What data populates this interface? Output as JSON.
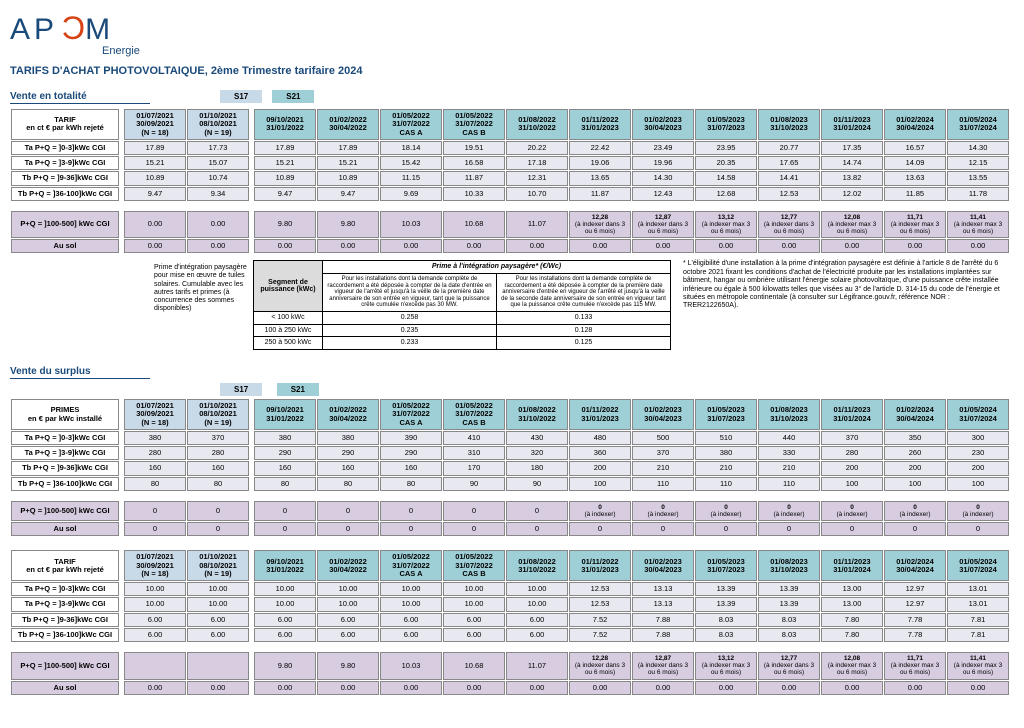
{
  "logo": {
    "part1": "AP",
    "part2": "C",
    "part3": "M",
    "sub": "Energie"
  },
  "title": "TARIFS D'ACHAT PHOTOVOLTAIQUE, 2ème Trimestre tarifaire 2024",
  "pills": {
    "s17": "S17",
    "s21": "S21"
  },
  "sections": {
    "vente_totalite": "Vente en totalité",
    "vente_surplus": "Vente du surplus"
  },
  "tarif_label": {
    "l1": "TARIF",
    "l2": "en ct € par kWh rejeté"
  },
  "primes_label": {
    "l1": "PRIMES",
    "l2": "en € par kWc installé"
  },
  "headers": [
    {
      "l1": "01/07/2021",
      "l2": "30/09/2021",
      "l3": "(N = 18)",
      "cls": "hdr1"
    },
    {
      "l1": "01/10/2021",
      "l2": "08/10/2021",
      "l3": "(N = 19)",
      "cls": "hdr1"
    },
    {
      "l1": "09/10/2021",
      "l2": "31/01/2022",
      "l3": "",
      "cls": "hdr2"
    },
    {
      "l1": "01/02/2022",
      "l2": "30/04/2022",
      "l3": "",
      "cls": "hdr2"
    },
    {
      "l1": "01/05/2022",
      "l2": "31/07/2022",
      "l3": "CAS A",
      "cls": "hdr2"
    },
    {
      "l1": "01/05/2022",
      "l2": "31/07/2022",
      "l3": "CAS B",
      "cls": "hdr2"
    },
    {
      "l1": "01/08/2022",
      "l2": "31/10/2022",
      "l3": "",
      "cls": "hdr2"
    },
    {
      "l1": "01/11/2022",
      "l2": "31/01/2023",
      "l3": "",
      "cls": "hdr2"
    },
    {
      "l1": "01/02/2023",
      "l2": "30/04/2023",
      "l3": "",
      "cls": "hdr2"
    },
    {
      "l1": "01/05/2023",
      "l2": "31/07/2023",
      "l3": "",
      "cls": "hdr2"
    },
    {
      "l1": "01/08/2023",
      "l2": "31/10/2023",
      "l3": "",
      "cls": "hdr2"
    },
    {
      "l1": "01/11/2023",
      "l2": "31/01/2024",
      "l3": "",
      "cls": "hdr2"
    },
    {
      "l1": "01/02/2024",
      "l2": "30/04/2024",
      "l3": "",
      "cls": "hdr2"
    },
    {
      "l1": "01/05/2024",
      "l2": "31/07/2024",
      "l3": "",
      "cls": "hdr2"
    }
  ],
  "rows_tarif": [
    {
      "label": "Ta P+Q = ]0-3]kWc CGI",
      "v": [
        "17.89",
        "17.73",
        "17.89",
        "17.89",
        "18.14",
        "19.51",
        "20.22",
        "22.42",
        "23.49",
        "23.95",
        "20.77",
        "17.35",
        "16.57",
        "14.30"
      ]
    },
    {
      "label": "Ta P+Q = ]3-9]kWc CGI",
      "v": [
        "15.21",
        "15.07",
        "15.21",
        "15.21",
        "15.42",
        "16.58",
        "17.18",
        "19.06",
        "19.96",
        "20.35",
        "17.65",
        "14.74",
        "14.09",
        "12.15"
      ]
    },
    {
      "label": "Tb P+Q = ]9-36]kWc CGI",
      "v": [
        "10.89",
        "10.74",
        "10.89",
        "10.89",
        "11.15",
        "11.87",
        "12.31",
        "13.65",
        "14.30",
        "14.58",
        "14.41",
        "13.82",
        "13.63",
        "13.55"
      ]
    },
    {
      "label": "Tb P+Q = ]36-100]kWc CGI",
      "v": [
        "9.47",
        "9.34",
        "9.47",
        "9.47",
        "9.69",
        "10.33",
        "10.70",
        "11.87",
        "12.43",
        "12.68",
        "12.53",
        "12.02",
        "11.85",
        "11.78"
      ]
    }
  ],
  "rows_tarif_last": {
    "label": "P+Q = ]100-500] kWc CGI",
    "v": [
      "0.00",
      "0.00",
      "9.80",
      "9.80",
      "10.03",
      "10.68",
      "11.07",
      {
        "t": "12,28",
        "s": "(à indexer dans 3 ou 6 mois)"
      },
      {
        "t": "12,87",
        "s": "(à indexer dans 3 ou 6 mois)"
      },
      {
        "t": "13,12",
        "s": "(à indexer max 3 ou 6 mois)"
      },
      {
        "t": "12,77",
        "s": "(à indexer dans 3 ou 6 mois)"
      },
      {
        "t": "12,08",
        "s": "(à indexer max 3 ou 6 mois)"
      },
      {
        "t": "11,71",
        "s": "(à indexer max 3 ou 6 mois)"
      },
      {
        "t": "11,41",
        "s": "(à indexer max 3 ou 6 mois)"
      }
    ]
  },
  "row_ausol": {
    "label": "Au sol",
    "zeros14": [
      "0.00",
      "0.00",
      "0.00",
      "0.00",
      "0.00",
      "0.00",
      "0.00",
      "0.00",
      "0.00",
      "0.00",
      "0.00",
      "0.00",
      "0.00",
      "0.00"
    ]
  },
  "prime_desc": "Prime d'intégration paysagère pour mise en œuvre de tuiles solaires. Cumulable avec les autres tarifs et primes (à concurrence des sommes disponibles)",
  "prime_table": {
    "title": "Prime à l'intégration paysagère* (€/Wc)",
    "seg": "Segment de puissance (kWc)",
    "col1": "Pour les installations dont la demande complète de raccordement a été déposée à compter de la date d'entrée en vigueur de l'arrêté et jusqu'à la veille de la première date anniversaire de son entrée en vigueur, tant que la puissance crête cumulée n'excède pas 30 MW.",
    "col2": "Pour les installations dont la demande complète de raccordement a été déposée à compter de la première date anniversaire d'entrée en vigueur de l'arrêté et jusqu'à la veille de la seconde date anniversaire de son entrée en vigueur tant que la puissance crête cumulée n'excède pas 115 MW.",
    "rows": [
      {
        "seg": "< 100 kWc",
        "a": "0.258",
        "b": "0.133"
      },
      {
        "seg": "100 à 250 kWc",
        "a": "0.235",
        "b": "0.128"
      },
      {
        "seg": "250 à 500 kWc",
        "a": "0.233",
        "b": "0.125"
      }
    ]
  },
  "prime_note": "* L'éligibilité d'une installation à la prime d'intégration paysagère est définie à l'article 8 de l'arrêté du 6 octobre 2021 fixant les conditions d'achat de l'électricité produite par les installations implantées sur bâtiment, hangar ou ombrière utilisant l'énergie solaire photovoltaïque, d'une puissance crête installée inférieure ou égale à 500 kilowatts telles que visées au 3° de l'article D. 314-15 du code de l'énergie et situées en métropole continentale (à consulter sur Légifrance.gouv.fr, référence NOR : TRER2122650A).",
  "rows_primes": [
    {
      "label": "Ta P+Q = ]0-3]kWc CGI",
      "v": [
        "380",
        "370",
        "380",
        "380",
        "390",
        "410",
        "430",
        "480",
        "500",
        "510",
        "440",
        "370",
        "350",
        "300"
      ]
    },
    {
      "label": "Ta P+Q = ]3-9]kWc CGI",
      "v": [
        "280",
        "280",
        "290",
        "290",
        "290",
        "310",
        "320",
        "360",
        "370",
        "380",
        "330",
        "280",
        "260",
        "230"
      ]
    },
    {
      "label": "Tb P+Q = ]9-36]kWc CGI",
      "v": [
        "160",
        "160",
        "160",
        "160",
        "160",
        "170",
        "180",
        "200",
        "210",
        "210",
        "210",
        "200",
        "200",
        "200"
      ]
    },
    {
      "label": "Tb P+Q = ]36-100]kWc CGI",
      "v": [
        "80",
        "80",
        "80",
        "80",
        "80",
        "90",
        "90",
        "100",
        "110",
        "110",
        "110",
        "100",
        "100",
        "100"
      ]
    }
  ],
  "rows_primes_last": {
    "label": "P+Q = ]100-500] kWc CGI",
    "v": [
      "0",
      "0",
      "0",
      "0",
      "0",
      "0",
      "0",
      {
        "t": "0",
        "s": "(à indexer)"
      },
      {
        "t": "0",
        "s": "(à indexer)"
      },
      {
        "t": "0",
        "s": "(à indexer)"
      },
      {
        "t": "0",
        "s": "(à indexer)"
      },
      {
        "t": "0",
        "s": "(à indexer)"
      },
      {
        "t": "0",
        "s": "(à indexer)"
      },
      {
        "t": "0",
        "s": "(à indexer)"
      }
    ]
  },
  "rows_primes_ausol": {
    "label": "Au sol",
    "v": [
      "0",
      "0",
      "0",
      "0",
      "0",
      "0",
      "0",
      "0",
      "0",
      "0",
      "0",
      "0",
      "0",
      "0"
    ]
  },
  "rows_tarif2": [
    {
      "label": "Ta P+Q = ]0-3]kWc CGI",
      "v": [
        "10.00",
        "10.00",
        "10.00",
        "10.00",
        "10.00",
        "10.00",
        "10.00",
        "12.53",
        "13.13",
        "13.39",
        "13.39",
        "13.00",
        "12.97",
        "13.01"
      ]
    },
    {
      "label": "Ta P+Q = ]3-9]kWc CGI",
      "v": [
        "10.00",
        "10.00",
        "10.00",
        "10.00",
        "10.00",
        "10.00",
        "10.00",
        "12.53",
        "13.13",
        "13.39",
        "13.39",
        "13.00",
        "12.97",
        "13.01"
      ]
    },
    {
      "label": "Tb P+Q = ]9-36]kWc CGI",
      "v": [
        "6.00",
        "6.00",
        "6.00",
        "6.00",
        "6.00",
        "6.00",
        "6.00",
        "7.52",
        "7.88",
        "8.03",
        "8.03",
        "7.80",
        "7.78",
        "7.81"
      ]
    },
    {
      "label": "Tb P+Q = ]36-100]kWc CGI",
      "v": [
        "6.00",
        "6.00",
        "6.00",
        "6.00",
        "6.00",
        "6.00",
        "6.00",
        "7.52",
        "7.88",
        "8.03",
        "8.03",
        "7.80",
        "7.78",
        "7.81"
      ]
    }
  ],
  "rows_tarif2_last": {
    "label": "P+Q = ]100-500] kWc CGI",
    "v": [
      "",
      "",
      "9.80",
      "9.80",
      "10.03",
      "10.68",
      "11.07",
      {
        "t": "12,28",
        "s": "(à indexer dans 3 ou 6 mois)"
      },
      {
        "t": "12,87",
        "s": "(à indexer dans 3 ou 6 mois)"
      },
      {
        "t": "13,12",
        "s": "(à indexer max 3 ou 6 mois)"
      },
      {
        "t": "12,77",
        "s": "(à indexer dans 3 ou 6 mois)"
      },
      {
        "t": "12,08",
        "s": "(à indexer max 3 ou 6 mois)"
      },
      {
        "t": "11,71",
        "s": "(à indexer max 3 ou 6 mois)"
      },
      {
        "t": "11,41",
        "s": "(à indexer max 3 ou 6 mois)"
      }
    ]
  },
  "rows_tarif2_ausol": {
    "label": "Au sol",
    "v": [
      "0.00",
      "0.00",
      "0.00",
      "0.00",
      "0.00",
      "0.00",
      "0.00",
      "0.00",
      "0.00",
      "0.00",
      "0.00",
      "0.00",
      "0.00",
      "0.00"
    ]
  }
}
